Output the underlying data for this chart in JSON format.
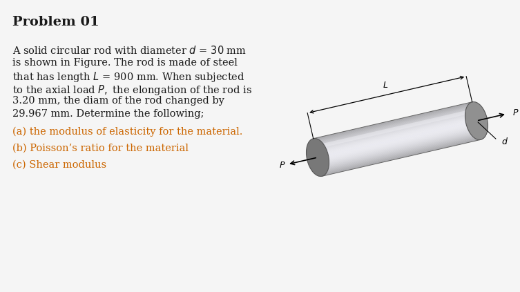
{
  "title": "Problem 01",
  "title_fontsize": 14,
  "title_fontweight": "bold",
  "background_color": "#f5f5f5",
  "text_color": "#1a1a1a",
  "item_a": "(a) the modulus of elasticity for the material.",
  "item_b": "(b) Poisson’s ratio for the material",
  "item_c": "(c) Shear modulus",
  "item_color": "#cc6600",
  "body_fontsize": 10.5,
  "item_fontsize": 10.5
}
